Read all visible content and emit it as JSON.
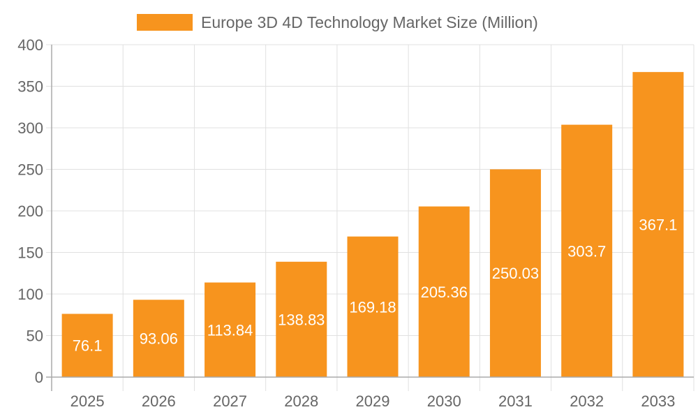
{
  "chart_data": {
    "type": "bar",
    "title": "",
    "xlabel": "",
    "ylabel": "",
    "categories": [
      "2025",
      "2026",
      "2027",
      "2028",
      "2029",
      "2030",
      "2031",
      "2032",
      "2033"
    ],
    "series": [
      {
        "name": "Europe 3D 4D Technology Market Size (Million)",
        "values": [
          76.1,
          93.06,
          113.84,
          138.83,
          169.18,
          205.36,
          250.03,
          303.7,
          367.1
        ],
        "color": "#F7941E"
      }
    ],
    "ylim": [
      0,
      400
    ],
    "yticks": [
      0,
      50,
      100,
      150,
      200,
      250,
      300,
      350,
      400
    ],
    "grid": true,
    "legend_position": "top",
    "data_labels": true,
    "data_label_color": "#ffffff",
    "axis_text_color": "#666666",
    "grid_color": "#e0e0e0"
  }
}
